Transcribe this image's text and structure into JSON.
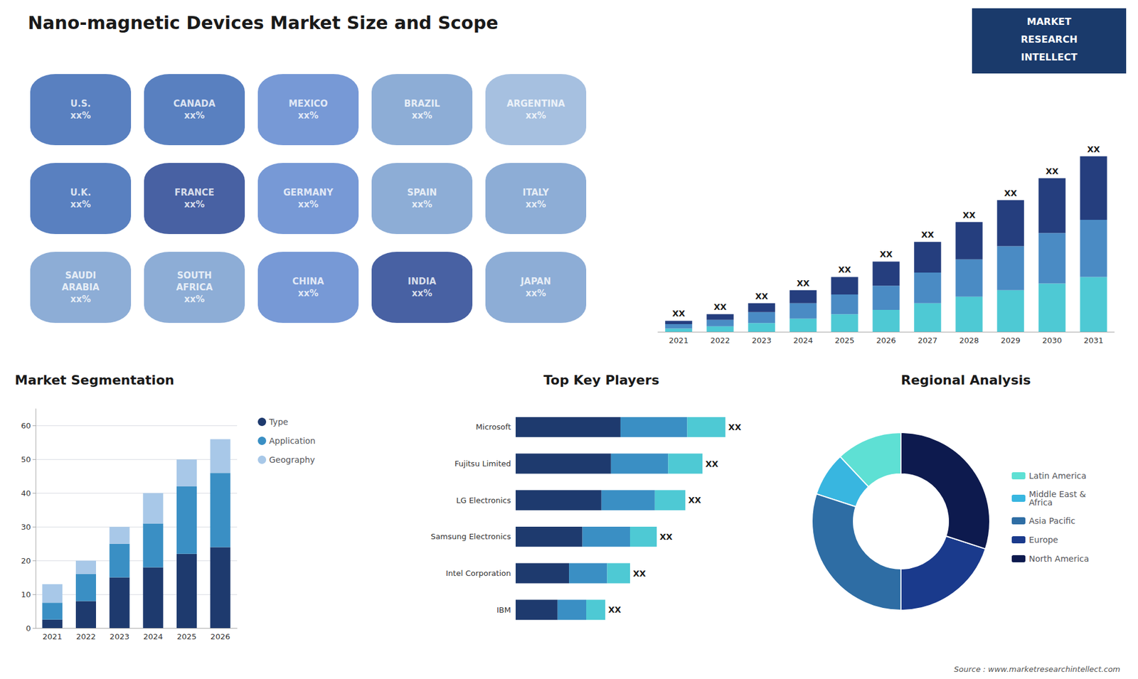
{
  "chart_data": [
    {
      "type": "bar",
      "title": "Nano-magnetic Devices Market Size and Scope",
      "categories": [
        "2021",
        "2022",
        "2023",
        "2024",
        "2025",
        "2026",
        "2027",
        "2028",
        "2029",
        "2030",
        "2031"
      ],
      "series": [
        {
          "color": "#4ec9d4",
          "values": [
            1.5,
            2.5,
            4,
            6,
            8,
            10,
            13,
            16,
            19,
            22,
            25
          ]
        },
        {
          "color": "#4a8bc4",
          "values": [
            2,
            3,
            5,
            7,
            9,
            11,
            14,
            17,
            20,
            23,
            26
          ]
        },
        {
          "color": "#253e7e",
          "values": [
            1.5,
            2.5,
            4,
            6,
            8,
            11,
            14,
            17,
            21,
            25,
            29
          ]
        }
      ],
      "stacked": true,
      "ylim": [
        0,
        108
      ],
      "tick_labels": "x",
      "annotations": [
        "XX",
        "XX",
        "XX",
        "XX",
        "XX",
        "XX",
        "XX",
        "XX",
        "XX",
        "XX",
        "XX"
      ]
    },
    {
      "type": "map",
      "categories": [
        "U.S.\nxx%",
        "CANADA\nxx%",
        "MEXICO\nxx%",
        "BRAZIL\nxx%",
        "ARGENTINA\nxx%",
        "U.K.\nxx%",
        "FRANCE\nxx%",
        "GERMANY\nxx%",
        "SPAIN\nxx%",
        "ITALY\nxx%",
        "SAUDI\nARABIA\nxx%",
        "SOUTH\nAFRICA\nxx%",
        "CHINA\nxx%",
        "INDIA\nxx%",
        "JAPAN\nxx%"
      ],
      "colors": [
        "#3060b0",
        "#3060b0",
        "#5580cc",
        "#7099cc",
        "#90b0d8",
        "#3060b0",
        "#1a3a8c",
        "#5580cc",
        "#7099cc",
        "#7099cc",
        "#7099cc",
        "#7099cc",
        "#5580cc",
        "#1a3a8c",
        "#7099cc"
      ],
      "annotations": [
        "MARKET",
        "RESEARCH",
        "INTELLECT"
      ]
    },
    {
      "type": "bar",
      "title": "Market Segmentation",
      "categories": [
        "2021",
        "2022",
        "2023",
        "2024",
        "2025",
        "2026"
      ],
      "series": [
        {
          "name": "Type",
          "color": "#1e3a6e",
          "values": [
            2.5,
            8,
            15,
            18,
            22,
            24
          ]
        },
        {
          "name": "Application",
          "color": "#3a8fc4",
          "values": [
            5,
            8,
            10,
            13,
            20,
            22
          ]
        },
        {
          "name": "Geography",
          "color": "#a8c8e8",
          "values": [
            5.5,
            4,
            5,
            9,
            8,
            10
          ]
        }
      ],
      "stacked": true,
      "ylim": [
        0,
        65
      ],
      "yticks": [
        0,
        10,
        20,
        30,
        40,
        50,
        60
      ],
      "grid": true,
      "legend": "right"
    },
    {
      "type": "bar",
      "title": "Top Key Players",
      "orientation": "horizontal",
      "categories": [
        "Microsoft",
        "Fujitsu Limited",
        "LG Electronics",
        "Samsung Electronics",
        "Intel Corporation",
        "IBM"
      ],
      "series": [
        {
          "color": "#1e3a6e",
          "values": [
            5.5,
            5.0,
            4.5,
            3.5,
            2.8,
            2.2
          ]
        },
        {
          "color": "#3a8fc4",
          "values": [
            3.5,
            3.0,
            2.8,
            2.5,
            2.0,
            1.5
          ]
        },
        {
          "color": "#4ec9d4",
          "values": [
            2.0,
            1.8,
            1.6,
            1.4,
            1.2,
            1.0
          ]
        }
      ],
      "stacked": true,
      "xlim": [
        0,
        14.3
      ],
      "tick_labels": "y",
      "annotations": [
        "XX",
        "XX",
        "XX",
        "XX",
        "XX",
        "XX"
      ]
    },
    {
      "type": "pie",
      "title": "Regional Analysis",
      "categories": [
        "Latin America",
        "Middle East &\nAfrica",
        "Asia Pacific",
        "Europe",
        "North America"
      ],
      "values": [
        12,
        8,
        30,
        20,
        30
      ],
      "colors": [
        "#5ee0d4",
        "#38b6e0",
        "#2e6da4",
        "#1a3a8c",
        "#0d1a4e"
      ],
      "legend": "right",
      "annotations": [
        "Source : www.marketresearchintellect.com"
      ]
    }
  ]
}
